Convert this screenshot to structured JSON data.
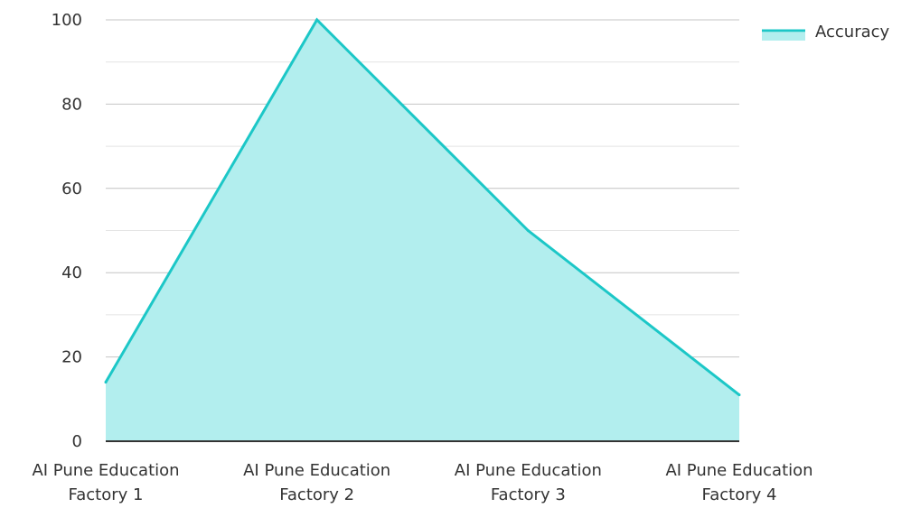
{
  "chart_data": {
    "type": "area",
    "categories": [
      [
        "AI Pune Education",
        "Factory 1"
      ],
      [
        "AI Pune Education",
        "Factory 2"
      ],
      [
        "AI Pune Education",
        "Factory 3"
      ],
      [
        "AI Pune Education",
        "Factory 4"
      ]
    ],
    "series": [
      {
        "name": "Accuracy",
        "values": [
          14,
          100,
          50,
          11
        ],
        "color": "#1cc7c7",
        "fill": "#b2eeee"
      }
    ],
    "ylim": [
      0,
      100
    ],
    "yticks": [
      0,
      20,
      40,
      60,
      80,
      100
    ],
    "grid": true,
    "legend": "top-right",
    "title": "",
    "xlabel": "",
    "ylabel": ""
  }
}
